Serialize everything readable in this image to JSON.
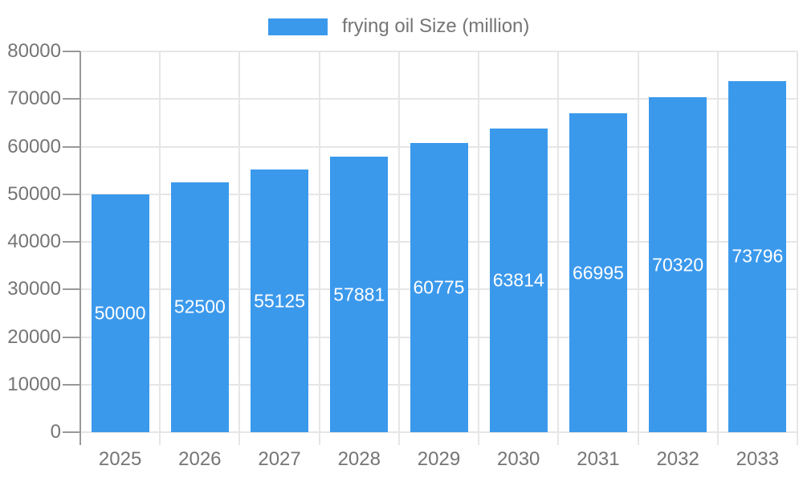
{
  "legend": {
    "label": "frying oil Size (million)"
  },
  "colors": {
    "bar": "#3B99EC",
    "grid": "#E6E6E6",
    "axis": "#999999",
    "axis_text": "#757575",
    "bar_label_text": "#FFFFFF",
    "background": "#FFFFFF"
  },
  "chart_data": {
    "type": "bar",
    "title": "",
    "xlabel": "",
    "ylabel": "",
    "series_name": "frying oil Size (million)",
    "categories": [
      "2025",
      "2026",
      "2027",
      "2028",
      "2029",
      "2030",
      "2031",
      "2032",
      "2033"
    ],
    "values": [
      50000,
      52500,
      55125,
      57881,
      60775,
      63814,
      66995,
      70320,
      73796
    ],
    "bar_value_labels": [
      "50000",
      "52500",
      "55125",
      "57881",
      "60775",
      "63814",
      "66995",
      "70320",
      "73796"
    ],
    "ylim": [
      0,
      80000
    ],
    "yticks": [
      0,
      10000,
      20000,
      30000,
      40000,
      50000,
      60000,
      70000,
      80000
    ],
    "grid": true,
    "legend_position": "top",
    "bar_labels_inside": true
  }
}
